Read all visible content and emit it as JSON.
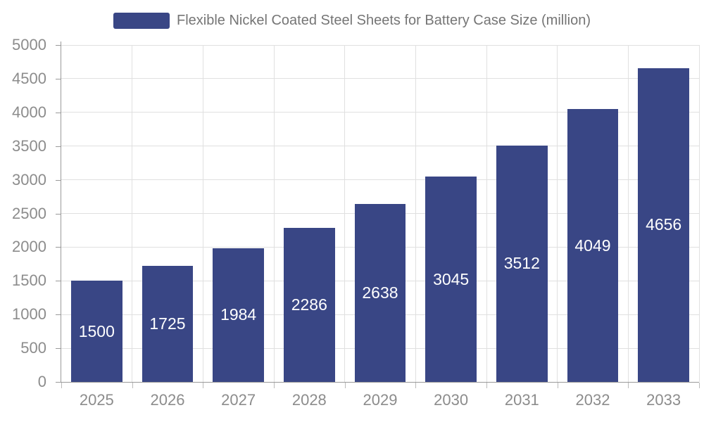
{
  "legend": {
    "label": "Flexible Nickel Coated Steel Sheets for Battery Case Size (million)"
  },
  "chart_data": {
    "type": "bar",
    "title": "",
    "xlabel": "",
    "ylabel": "",
    "categories": [
      "2025",
      "2026",
      "2027",
      "2028",
      "2029",
      "2030",
      "2031",
      "2032",
      "2033"
    ],
    "series": [
      {
        "name": "Flexible Nickel Coated Steel Sheets for Battery Case Size (million)",
        "values": [
          1500,
          1725,
          1984,
          2286,
          2638,
          3045,
          3512,
          4049,
          4656
        ]
      }
    ],
    "ylim": [
      0,
      5000
    ],
    "ytick_step": 500,
    "grid": true,
    "legend_position": "top-center",
    "bar_label_position": "inside-center"
  },
  "colors": {
    "bar": "#394685",
    "bar_label": "#FFFFFF",
    "grid_line": "#E0E0E0",
    "axis_line": "#999999",
    "x_tick": "#BBBBBB",
    "tick_label": "#8C8C8C",
    "legend_text": "#757575",
    "background": "#FFFFFF"
  }
}
